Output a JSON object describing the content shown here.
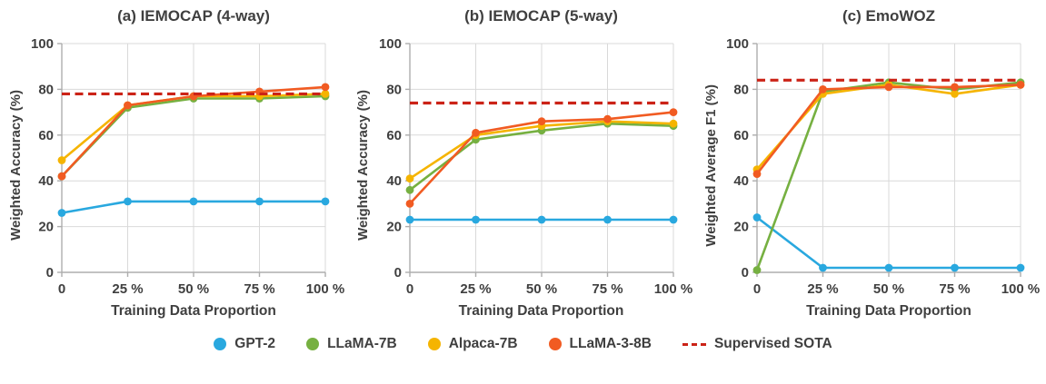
{
  "legend": {
    "items": [
      {
        "label": "GPT-2",
        "color": "#29a8df",
        "marker": "dot"
      },
      {
        "label": "LLaMA-7B",
        "color": "#76b041",
        "marker": "dot"
      },
      {
        "label": "Alpaca-7B",
        "color": "#f5b400",
        "marker": "dot"
      },
      {
        "label": "LLaMA-3-8B",
        "color": "#f15b22",
        "marker": "dot"
      },
      {
        "label": "Supervised SOTA",
        "color": "#cb2317",
        "marker": "dashed-line"
      }
    ]
  },
  "chart_data": [
    {
      "type": "line",
      "title": "(a) IEMOCAP (4-way)",
      "xlabel": "Training Data Proportion",
      "ylabel": "Weighted Accuracy (%)",
      "x": [
        0,
        25,
        50,
        75,
        100
      ],
      "x_tick_labels": [
        "0",
        "25 %",
        "50 %",
        "75 %",
        "100 %"
      ],
      "y_ticks": [
        0,
        20,
        40,
        60,
        80,
        100
      ],
      "ylim": [
        0,
        100
      ],
      "grid": true,
      "series": [
        {
          "name": "GPT-2",
          "color": "#29a8df",
          "values": [
            26,
            31,
            31,
            31,
            31
          ]
        },
        {
          "name": "LLaMA-7B",
          "color": "#76b041",
          "values": [
            42,
            72,
            76,
            76,
            77
          ]
        },
        {
          "name": "Alpaca-7B",
          "color": "#f5b400",
          "values": [
            49,
            73,
            77,
            77,
            78
          ]
        },
        {
          "name": "LLaMA-3-8B",
          "color": "#f15b22",
          "values": [
            42,
            73,
            77,
            79,
            81
          ]
        }
      ],
      "sota": {
        "name": "Supervised SOTA",
        "value": 78
      }
    },
    {
      "type": "line",
      "title": "(b) IEMOCAP (5-way)",
      "xlabel": "Training Data Proportion",
      "ylabel": "Weighted Accuracy (%)",
      "x": [
        0,
        25,
        50,
        75,
        100
      ],
      "x_tick_labels": [
        "0",
        "25 %",
        "50 %",
        "75 %",
        "100 %"
      ],
      "y_ticks": [
        0,
        20,
        40,
        60,
        80,
        100
      ],
      "ylim": [
        0,
        100
      ],
      "grid": true,
      "series": [
        {
          "name": "GPT-2",
          "color": "#29a8df",
          "values": [
            23,
            23,
            23,
            23,
            23
          ]
        },
        {
          "name": "LLaMA-7B",
          "color": "#76b041",
          "values": [
            36,
            58,
            62,
            65,
            64
          ]
        },
        {
          "name": "Alpaca-7B",
          "color": "#f5b400",
          "values": [
            41,
            60,
            64,
            66,
            65
          ]
        },
        {
          "name": "LLaMA-3-8B",
          "color": "#f15b22",
          "values": [
            30,
            61,
            66,
            67,
            70
          ]
        }
      ],
      "sota": {
        "name": "Supervised SOTA",
        "value": 74
      }
    },
    {
      "type": "line",
      "title": "(c) EmoWOZ",
      "xlabel": "Training Data Proportion",
      "ylabel": "Weighted Average F1 (%)",
      "x": [
        0,
        25,
        50,
        75,
        100
      ],
      "x_tick_labels": [
        "0",
        "25 %",
        "50 %",
        "75 %",
        "100 %"
      ],
      "y_ticks": [
        0,
        20,
        40,
        60,
        80,
        100
      ],
      "ylim": [
        0,
        100
      ],
      "grid": true,
      "series": [
        {
          "name": "GPT-2",
          "color": "#29a8df",
          "values": [
            24,
            2,
            2,
            2,
            2
          ]
        },
        {
          "name": "LLaMA-7B",
          "color": "#76b041",
          "values": [
            1,
            79,
            83,
            80,
            83
          ]
        },
        {
          "name": "Alpaca-7B",
          "color": "#f5b400",
          "values": [
            45,
            78,
            82,
            78,
            82
          ]
        },
        {
          "name": "LLaMA-3-8B",
          "color": "#f15b22",
          "values": [
            43,
            80,
            81,
            81,
            82
          ]
        }
      ],
      "sota": {
        "name": "Supervised SOTA",
        "value": 84
      }
    }
  ]
}
